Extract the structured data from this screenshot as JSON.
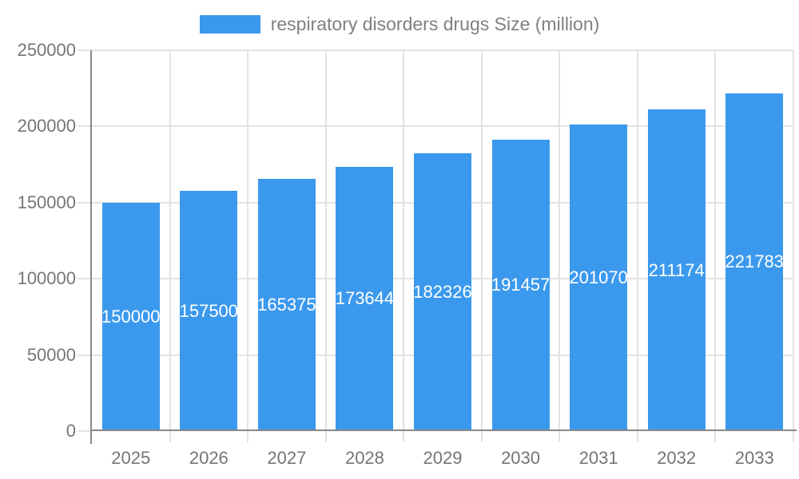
{
  "legend": {
    "label": "respiratory disorders drugs Size (million)"
  },
  "chart_data": {
    "type": "bar",
    "title": "",
    "series_name": "respiratory disorders drugs Size (million)",
    "categories": [
      "2025",
      "2026",
      "2027",
      "2028",
      "2029",
      "2030",
      "2031",
      "2032",
      "2033"
    ],
    "values": [
      150000,
      157500,
      165375,
      173644,
      182326,
      191457,
      201070,
      211174,
      221783
    ],
    "xlabel": "",
    "ylabel": "",
    "ylim": [
      0,
      250000
    ],
    "yticks": [
      0,
      50000,
      100000,
      150000,
      200000,
      250000
    ],
    "grid": true,
    "legend_position": "top-center",
    "bar_label_position": "center-inside"
  },
  "colors": {
    "bar": "#3B99ED",
    "bar_label": "#FFFFFF",
    "gridline": "#E3E3E3",
    "axis_line": "#888888",
    "tick_label": "#757575",
    "legend_text": "#808080",
    "background": "#FFFFFF"
  }
}
